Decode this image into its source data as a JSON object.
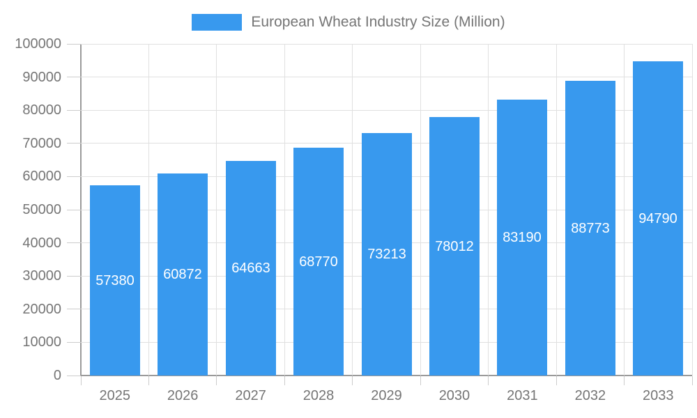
{
  "chart_data": {
    "type": "bar",
    "title": "European Wheat Industry Size (Million)",
    "categories": [
      "2025",
      "2026",
      "2027",
      "2028",
      "2029",
      "2030",
      "2031",
      "2032",
      "2033"
    ],
    "values": [
      57380,
      60872,
      64663,
      68770,
      73213,
      78012,
      83190,
      88773,
      94790
    ],
    "bar_value_labels": [
      "57380",
      "60872",
      "64663",
      "68770",
      "73213",
      "78012",
      "83190",
      "88773",
      "94790"
    ],
    "xlabel": "",
    "ylabel": "",
    "ylim": [
      0,
      100000
    ],
    "y_tick_step": 10000,
    "y_tick_labels": [
      "0",
      "10000",
      "20000",
      "30000",
      "40000",
      "50000",
      "60000",
      "70000",
      "80000",
      "90000",
      "100000"
    ],
    "grid": "on",
    "legend_position": "top-center",
    "colors": {
      "bar": "#3899EE",
      "bar_value_text": "#ffffff",
      "axis_text": "#757575",
      "axis_line": "#9a9a9a",
      "gridline": "#e0e0e0",
      "tick": "#cccccc",
      "background": "#ffffff"
    }
  }
}
